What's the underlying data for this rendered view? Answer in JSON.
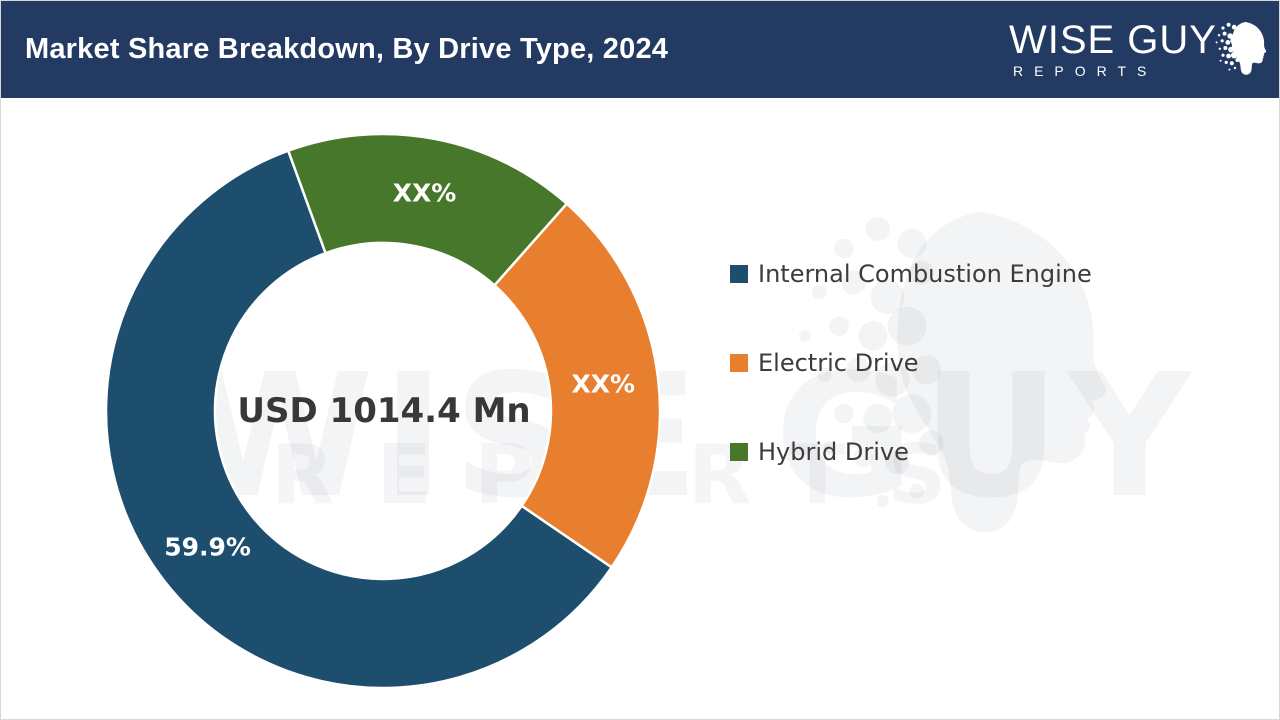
{
  "header": {
    "title": "Market Share Breakdown, By Drive Type, 2024",
    "logo": {
      "line1": "WISE GUY",
      "line2": "REPORTS"
    }
  },
  "watermark": {
    "line1": "WISE GUY",
    "line2": "REPORTS"
  },
  "chart_data": {
    "type": "pie",
    "subtype": "donut",
    "title": "Market Share Breakdown, By Drive Type, 2024",
    "center_label": "USD 1014.4 Mn",
    "start_angle_deg": 110,
    "direction": "counterclockwise",
    "legend_position": "right",
    "slices": [
      {
        "name": "Internal Combustion Engine",
        "display_label": "59.9%",
        "value_pct": 59.9,
        "color": "#1E4E6E"
      },
      {
        "name": "Electric Drive",
        "display_label": "XX%",
        "value_pct": 23.0,
        "color": "#E87F2E"
      },
      {
        "name": "Hybrid Drive",
        "display_label": "XX%",
        "value_pct": 17.1,
        "color": "#47772A"
      }
    ]
  },
  "colors": {
    "header_bg": "#233A63",
    "slice_blue": "#1E4E6E",
    "slice_orange": "#E87F2E",
    "slice_green": "#47772A",
    "legend_text": "#3C3C3C",
    "center_text": "#383838"
  }
}
